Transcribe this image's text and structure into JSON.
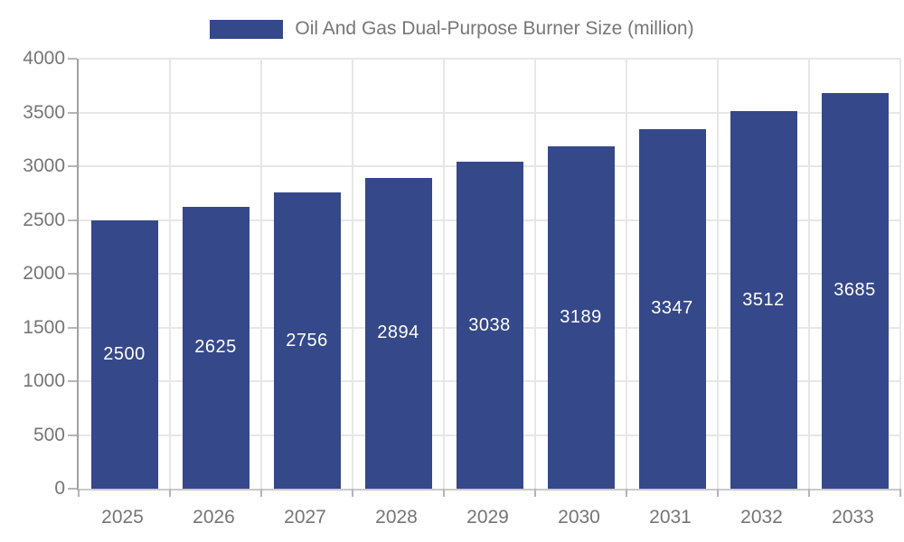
{
  "chart_data": {
    "type": "bar",
    "title": "Oil And Gas Dual-Purpose Burner Size (million)",
    "series_name": "Oil And Gas Dual-Purpose Burner Size (million)",
    "categories": [
      "2025",
      "2026",
      "2027",
      "2028",
      "2029",
      "2030",
      "2031",
      "2032",
      "2033"
    ],
    "values": [
      2500,
      2625,
      2756,
      2894,
      3038,
      3189,
      3347,
      3512,
      3685
    ],
    "bar_value_labels": [
      "2500",
      "2625",
      "2756",
      "2894",
      "3038",
      "3189",
      "3347",
      "3512",
      "3685"
    ],
    "xlabel": "",
    "ylabel": "",
    "ylim": [
      0,
      4000
    ],
    "ytick_values": [
      0,
      500,
      1000,
      1500,
      2000,
      2500,
      3000,
      3500,
      4000
    ],
    "ytick_labels": [
      "0",
      "500",
      "1000",
      "1500",
      "2000",
      "2500",
      "3000",
      "3500",
      "4000"
    ],
    "grid": true,
    "legend_position": "top",
    "value_label_position": "inside-center"
  },
  "colors": {
    "bar": "#354889",
    "grid": "#e7e7e7",
    "y_spine": "#a2a2a2",
    "x_spine": "#c9c9c9",
    "tick": "#b5b5bb",
    "axis_text": "#757575",
    "legend_text": "#76767a",
    "value_text": "#ffffff",
    "background": "#ffffff"
  }
}
